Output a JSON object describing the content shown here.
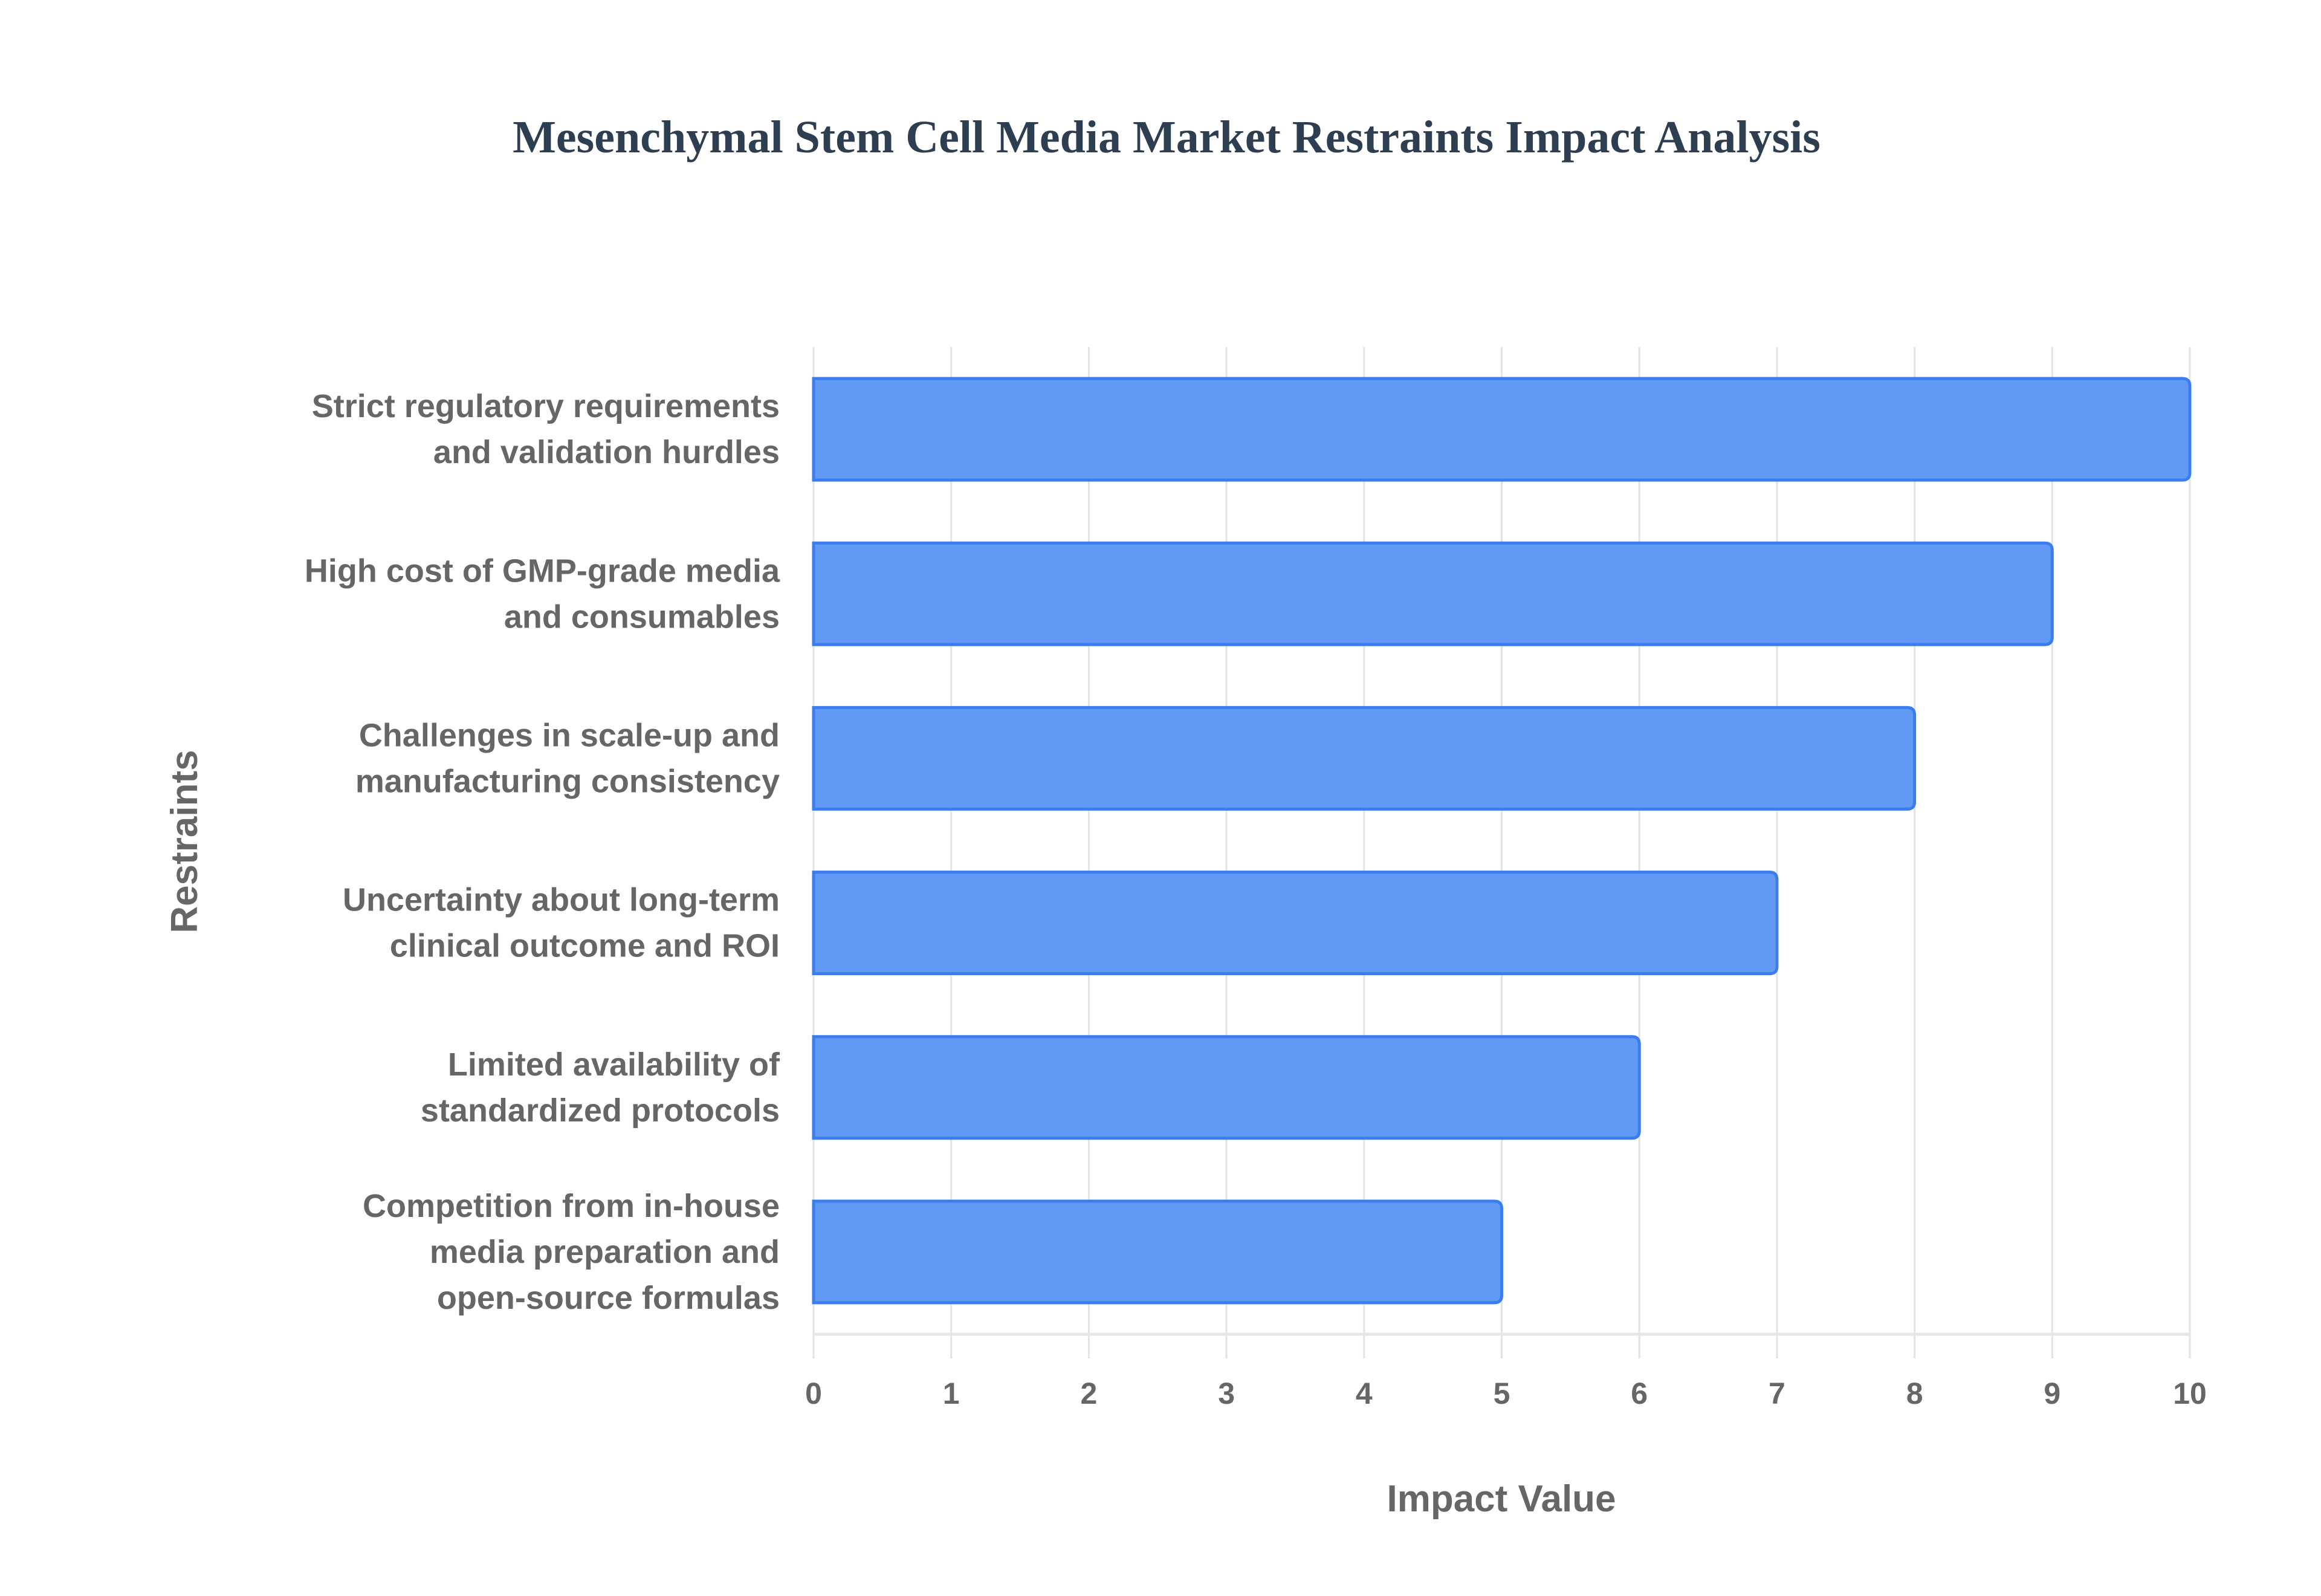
{
  "chart_data": {
    "type": "bar",
    "orientation": "horizontal",
    "title": "Mesenchymal Stem Cell Media Market Restraints Impact Analysis",
    "xlabel": "Impact Value",
    "ylabel": "Restraints",
    "xlim": [
      0,
      10
    ],
    "xticks": [
      "0",
      "1",
      "2",
      "3",
      "4",
      "5",
      "6",
      "7",
      "8",
      "9",
      "10"
    ],
    "grid": true,
    "categories": [
      [
        "Strict regulatory requirements",
        "and validation hurdles"
      ],
      [
        "High cost of GMP-grade media",
        "and consumables"
      ],
      [
        "Challenges in scale-up and",
        "manufacturing consistency"
      ],
      [
        "Uncertainty about long-term",
        "clinical outcome and ROI"
      ],
      [
        "Limited availability of",
        "standardized protocols"
      ],
      [
        "Competition from in-house",
        "media preparation and",
        "open-source formulas"
      ]
    ],
    "values": [
      10,
      9,
      8,
      7,
      6,
      5
    ],
    "colors": {
      "bar_fill": "#6199f5",
      "bar_stroke": "#3b7ded",
      "grid": "#e3e3e3"
    }
  }
}
